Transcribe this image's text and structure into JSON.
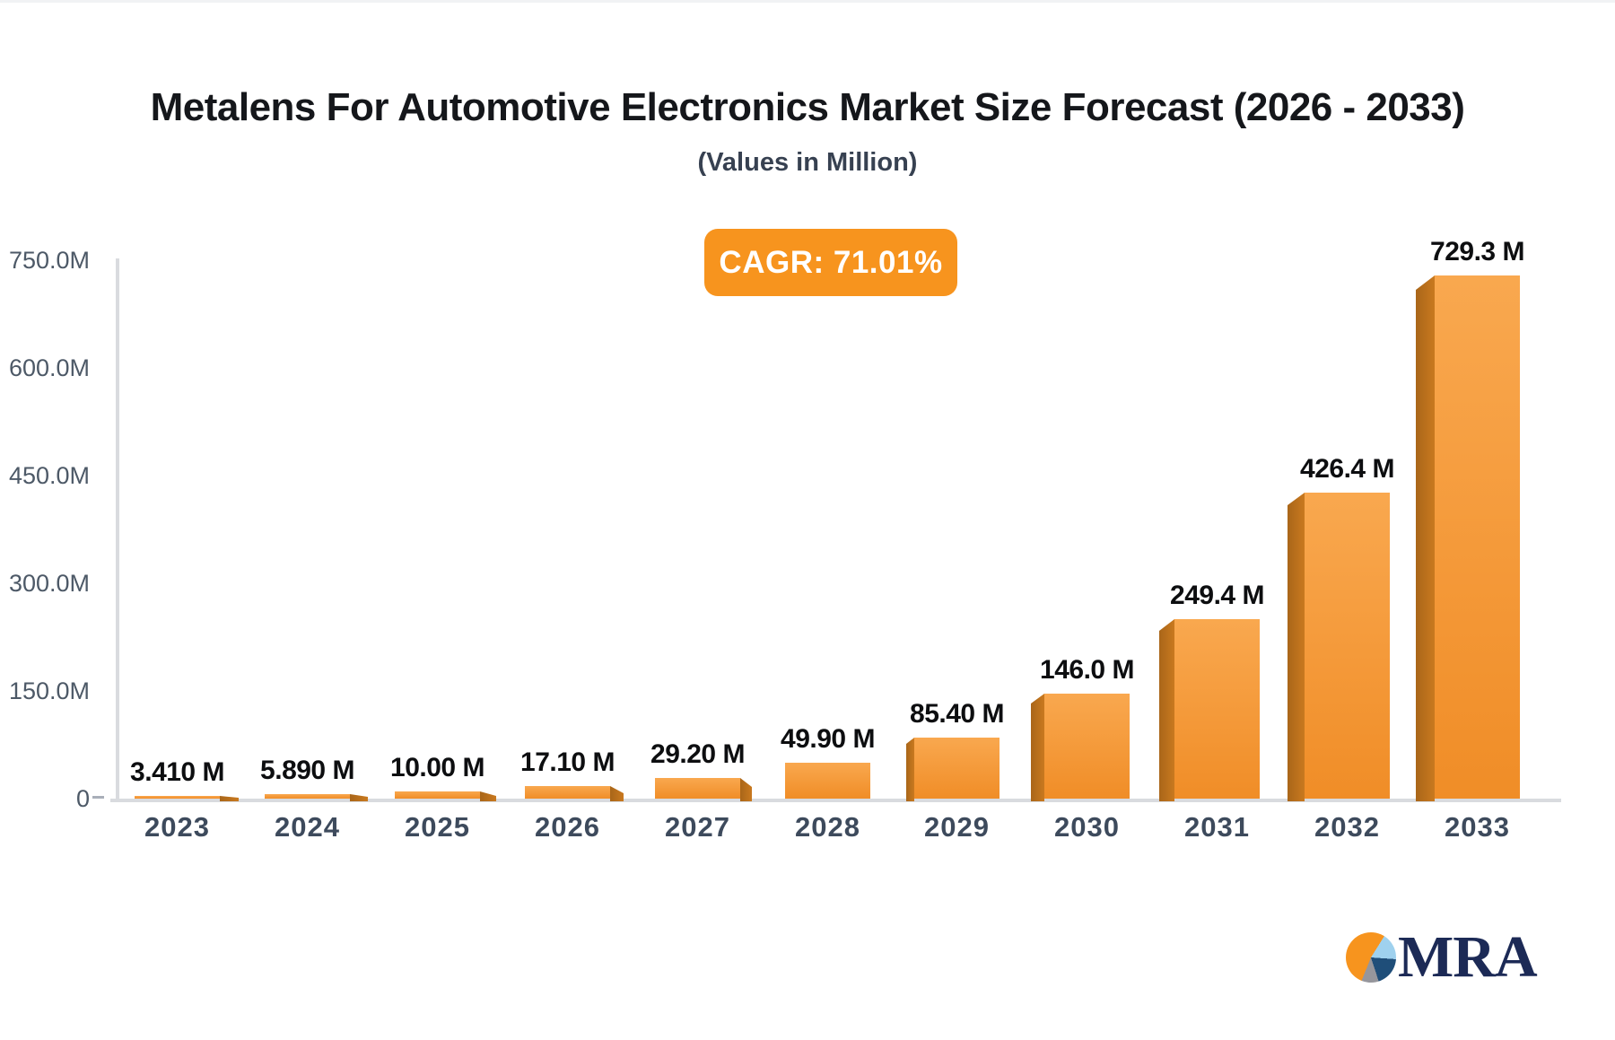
{
  "title": "Metalens For Automotive Electronics Market Size Forecast (2026 - 2033)",
  "subtitle": "(Values in Million)",
  "badge": {
    "label": "CAGR: 71.01%"
  },
  "logo": {
    "text": "MRA"
  },
  "colors": {
    "accent": "#F7941E",
    "bar_gradient_top": "#F9A84F",
    "bar_gradient_bottom": "#F08D27",
    "bar_side": "#C9791F",
    "bar_side_dark": "#A96619",
    "axis_line": "#D9DBDF",
    "value_label": "#0D0E10",
    "year_label": "#3D4A5C",
    "ytick_label": "#4D5967",
    "logo_navy": "#1C2A56",
    "pie_blue": "#9FD1EE",
    "pie_navy": "#1F4E79",
    "pie_gray": "#96969C"
  },
  "chart_data": {
    "type": "bar",
    "title": "Metalens For Automotive Electronics Market Size Forecast (2026 - 2033)",
    "subtitle": "(Values in Million)",
    "annotation": "CAGR: 71.01%",
    "unit": "Million",
    "categories": [
      "2023",
      "2024",
      "2025",
      "2026",
      "2027",
      "2028",
      "2029",
      "2030",
      "2031",
      "2032",
      "2033"
    ],
    "values": [
      3.41,
      5.89,
      10.0,
      17.1,
      29.2,
      49.9,
      85.4,
      146.0,
      249.4,
      426.4,
      729.3
    ],
    "value_labels": [
      "3.410 M",
      "5.890 M",
      "10.00 M",
      "17.10 M",
      "29.20 M",
      "49.90 M",
      "85.40 M",
      "146.0 M",
      "249.4 M",
      "426.4 M",
      "729.3 M"
    ],
    "xlabel": "",
    "ylabel": "",
    "ylim": [
      0,
      750
    ],
    "grid": false,
    "legend": "none",
    "y_ticks": [
      {
        "label": "750.0M",
        "value": 750
      },
      {
        "label": "600.0M",
        "value": 600
      },
      {
        "label": "450.0M",
        "value": 450
      },
      {
        "label": "300.0M",
        "value": 300
      },
      {
        "label": "150.0M",
        "value": 150
      },
      {
        "label": "0",
        "value": 0
      }
    ]
  }
}
